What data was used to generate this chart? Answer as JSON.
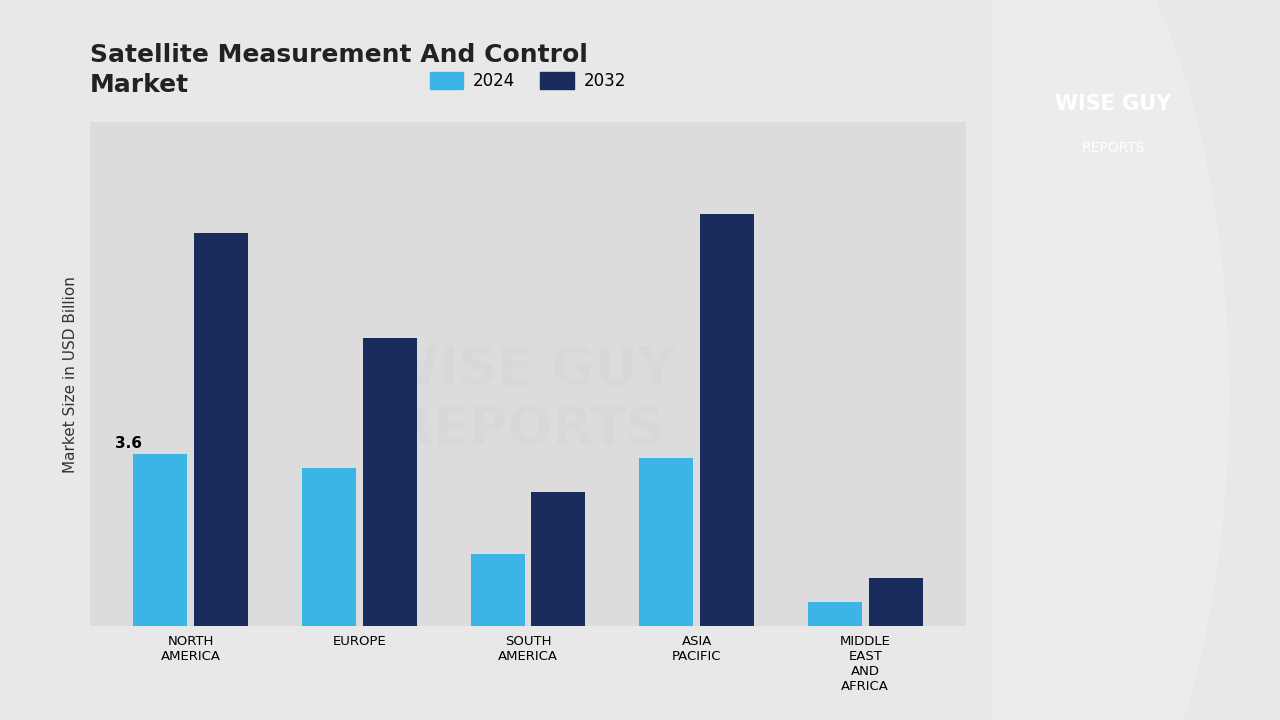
{
  "title": "Satellite Measurement And Control\nMarket",
  "ylabel": "Market Size in USD Billion",
  "categories": [
    "NORTH\nAMERICA",
    "EUROPE",
    "SOUTH\nAMERICA",
    "ASIA\nPACIFIC",
    "MIDDLE\nEAST\nAND\nAFRICA"
  ],
  "values_2024": [
    3.6,
    3.3,
    1.5,
    3.5,
    0.5
  ],
  "values_2032": [
    8.2,
    6.0,
    2.8,
    8.6,
    1.0
  ],
  "color_2024": "#3ab5e6",
  "color_2032": "#1a2b5e",
  "bar_label_2024": "3.6",
  "label_2024": "2024",
  "label_2032": "2032",
  "bg_color": "#e8e8e8",
  "plot_bg_color": "#dcdcdc",
  "title_color": "#222222",
  "axis_label_color": "#333333",
  "right_panel_color": "#1a2b5e",
  "watermark_text": "WISE GUY\nREPORTS",
  "wiseguy_line1": "WISE GUY",
  "wiseguy_line2": "REPORTS"
}
